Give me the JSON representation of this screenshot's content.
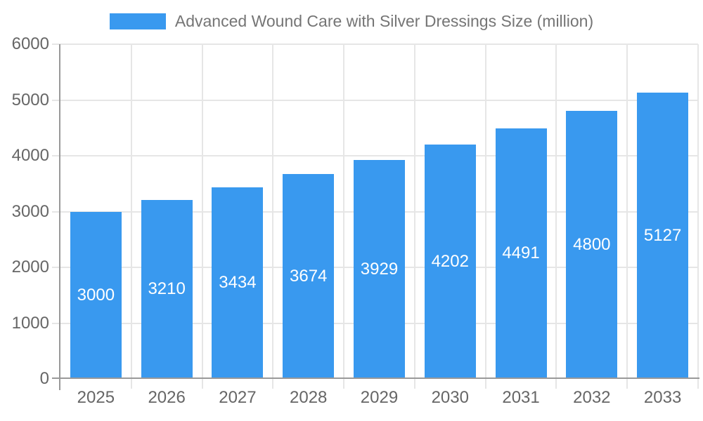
{
  "legend": {
    "label": "Advanced Wound Care with Silver Dressings Size (million)"
  },
  "chart_data": {
    "type": "bar",
    "title": "Advanced Wound Care with Silver Dressings Size (million)",
    "categories": [
      "2025",
      "2026",
      "2027",
      "2028",
      "2029",
      "2030",
      "2031",
      "2032",
      "2033"
    ],
    "values": [
      3000,
      3210,
      3434,
      3674,
      3929,
      4202,
      4491,
      4800,
      5127
    ],
    "series": [
      {
        "name": "Advanced Wound Care with Silver Dressings Size (million)",
        "values": [
          3000,
          3210,
          3434,
          3674,
          3929,
          4202,
          4491,
          4800,
          5127
        ]
      }
    ],
    "xlabel": "",
    "ylabel": "",
    "ylim": [
      0,
      6000
    ],
    "y_ticks": [
      0,
      1000,
      2000,
      3000,
      4000,
      5000,
      6000
    ],
    "grid": true,
    "legend_position": "top-center",
    "value_labels_position": "inside-center"
  },
  "colors": {
    "bar": "#3999EF",
    "grid_line": "#E6E6E6",
    "axis_line": "#999999",
    "tick_label": "#666666",
    "title_text": "#757575",
    "value_label": "#FFFFFF",
    "background": "#FFFFFF"
  }
}
